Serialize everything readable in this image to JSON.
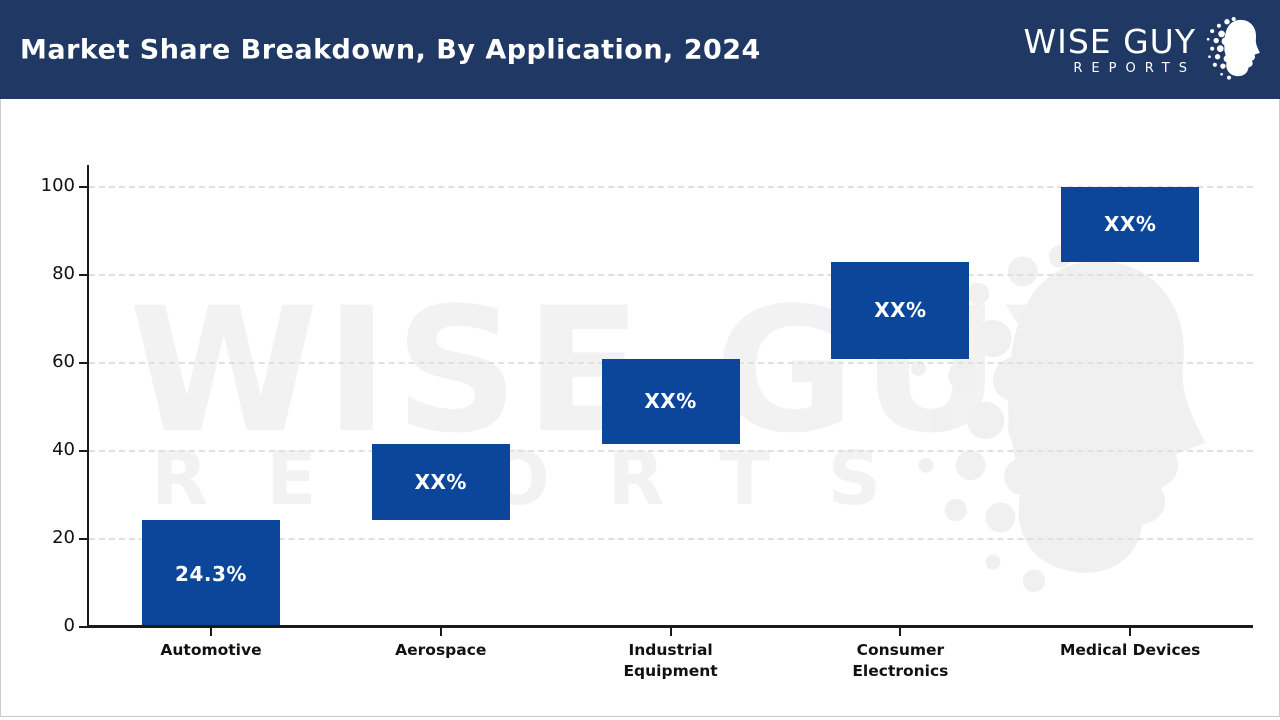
{
  "header": {
    "title": "Market Share Breakdown, By Application, 2024",
    "brand": {
      "name": "WISE GUY",
      "sub": "REPORTS"
    }
  },
  "watermark": {
    "name": "WISE GUY",
    "sub": "REPORTS"
  },
  "chart_data": {
    "type": "bar",
    "subtype": "waterfall-style floating bars",
    "title": "Market Share Breakdown, By Application, 2024",
    "categories": [
      "Automotive",
      "Aerospace",
      "Industrial\nEquipment",
      "Consumer\nElectronics",
      "Medical Devices"
    ],
    "segments": [
      {
        "category": "Automotive",
        "start": 0,
        "end": 24.3,
        "label": "24.3%"
      },
      {
        "category": "Aerospace",
        "start": 24.3,
        "end": 41.5,
        "label": "XX%"
      },
      {
        "category": "Industrial Equipment",
        "start": 41.5,
        "end": 61.0,
        "label": "XX%"
      },
      {
        "category": "Consumer Electronics",
        "start": 61.0,
        "end": 83.0,
        "label": "XX%"
      },
      {
        "category": "Medical Devices",
        "start": 83.0,
        "end": 100.0,
        "label": "XX%"
      }
    ],
    "yticks": [
      0,
      20,
      40,
      60,
      80,
      100
    ],
    "ylim": [
      0,
      105
    ],
    "xlabel": "",
    "ylabel": "",
    "legend": "none",
    "grid": "horizontal-dashed",
    "bar_color": "#0c469b",
    "bar_label_color": "#ffffff"
  },
  "colors": {
    "header_bg": "#1f3864",
    "bar": "#0c469b",
    "gridline": "#e0e0e0",
    "axis": "#1a1a1a",
    "watermark": "#f2f2f2",
    "border": "#cccccc"
  }
}
